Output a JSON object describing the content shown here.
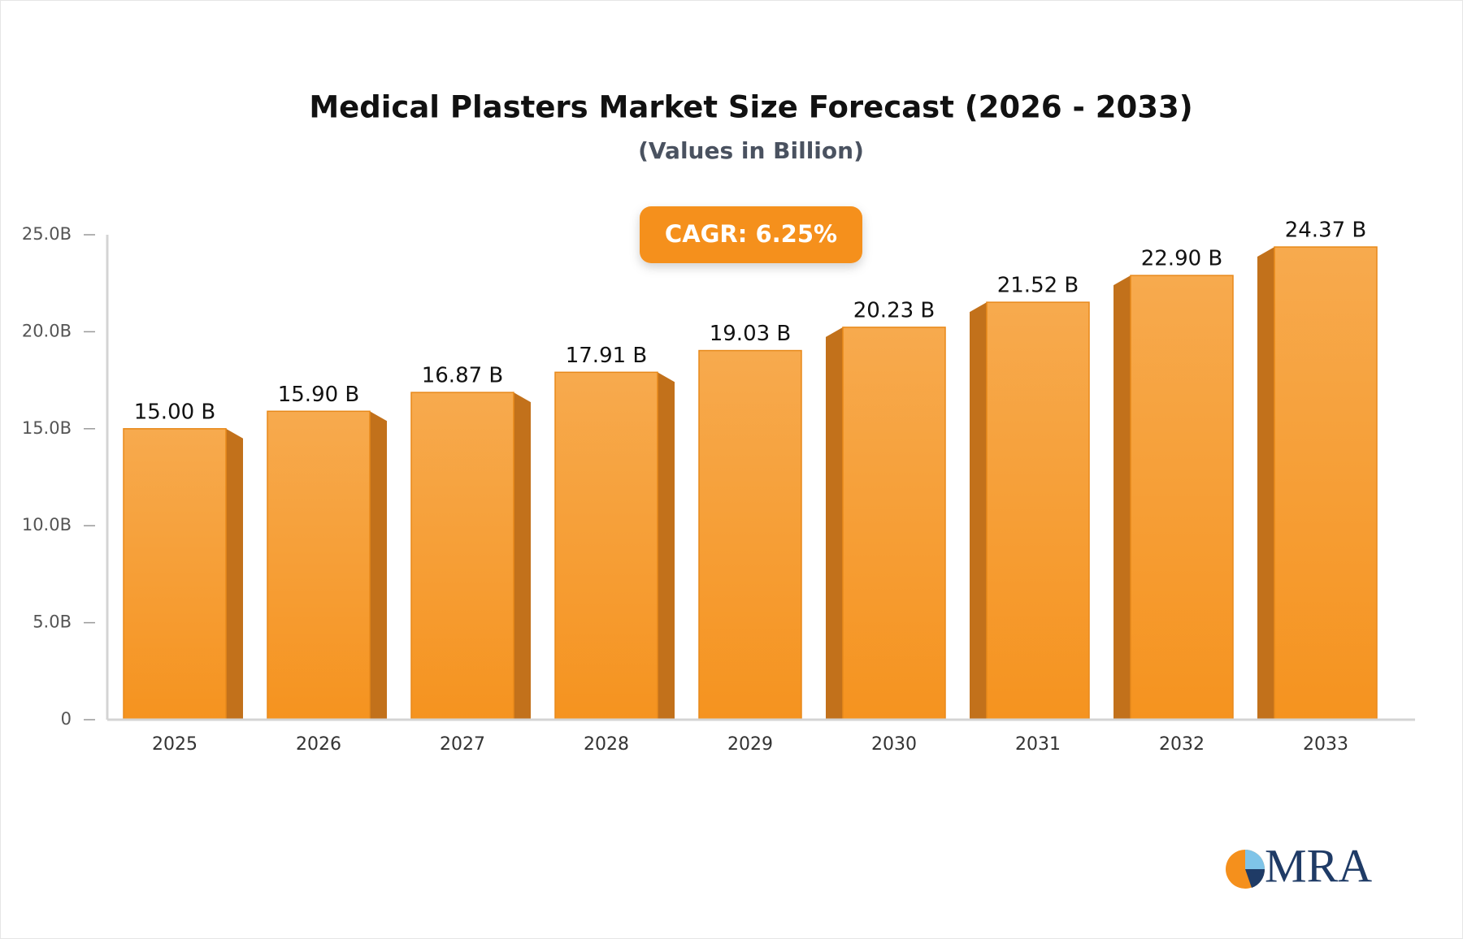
{
  "chart_data": {
    "type": "bar",
    "title": "Medical Plasters Market Size Forecast (2026 - 2033)",
    "subtitle": "(Values in Billion)",
    "annotation": "CAGR: 6.25%",
    "categories": [
      "2025",
      "2026",
      "2027",
      "2028",
      "2029",
      "2030",
      "2031",
      "2032",
      "2033"
    ],
    "values": [
      15.0,
      15.9,
      16.87,
      17.91,
      19.03,
      20.23,
      21.52,
      22.9,
      24.37
    ],
    "value_labels": [
      "15.00 B",
      "15.90 B",
      "16.87 B",
      "17.91 B",
      "19.03 B",
      "20.23 B",
      "21.52 B",
      "22.90 B",
      "24.37 B"
    ],
    "color": "#f5961f",
    "ylim": [
      0,
      25
    ],
    "yticks": [
      0,
      {
        "value": 5,
        "label": "5.0B"
      },
      {
        "value": 10,
        "label": "10.0B"
      },
      {
        "value": 15,
        "label": "15.0B"
      },
      {
        "value": 20,
        "label": "20.0B"
      },
      {
        "value": 25,
        "label": "25.0B"
      }
    ]
  },
  "logo": "MRA"
}
